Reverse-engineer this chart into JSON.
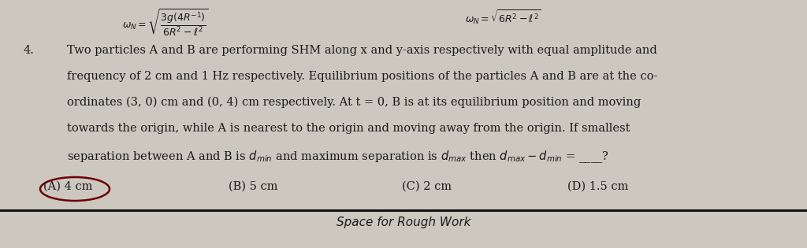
{
  "background_color": "#ccc8c0",
  "text_color": "#1a1a1a",
  "line_color": "#111111",
  "top_left_formula": "$\\omega_N = \\sqrt{\\dfrac{3g(4R^{-1})}{6R^2 - \\ell^2}}$",
  "top_right_formula": "$\\omega_N = \\sqrt{6R^2 - \\ell^2}$",
  "question_number": "4.",
  "question_lines": [
    "Two particles A and B are performing SHM along x and y-axis respectively with equal amplitude and",
    "frequency of 2 cm and 1 Hz respectively. Equilibrium positions of the particles A and B are at the co-",
    "ordinates (3, 0) cm and (0, 4) cm respectively. At t = 0, B is at its equilibrium position and moving",
    "towards the origin, while A is nearest to the origin and moving away from the origin. If smallest",
    "separation between A and B is $d_{min}$ and maximum separation is $d_{max}$ then $d_{max} - d_{min}$ = ____?"
  ],
  "options": [
    {
      "label": "(A)",
      "text": "4 cm",
      "circled": true
    },
    {
      "label": "(B)",
      "text": "5 cm",
      "circled": false
    },
    {
      "label": "(C)",
      "text": "2 cm",
      "circled": false
    },
    {
      "label": "(D)",
      "text": "1.5 cm",
      "circled": false
    }
  ],
  "footer_text": "Space for Rough Work",
  "font_size_question": 10.5,
  "font_size_options": 10.5,
  "font_size_footer": 11,
  "font_size_formula": 9
}
